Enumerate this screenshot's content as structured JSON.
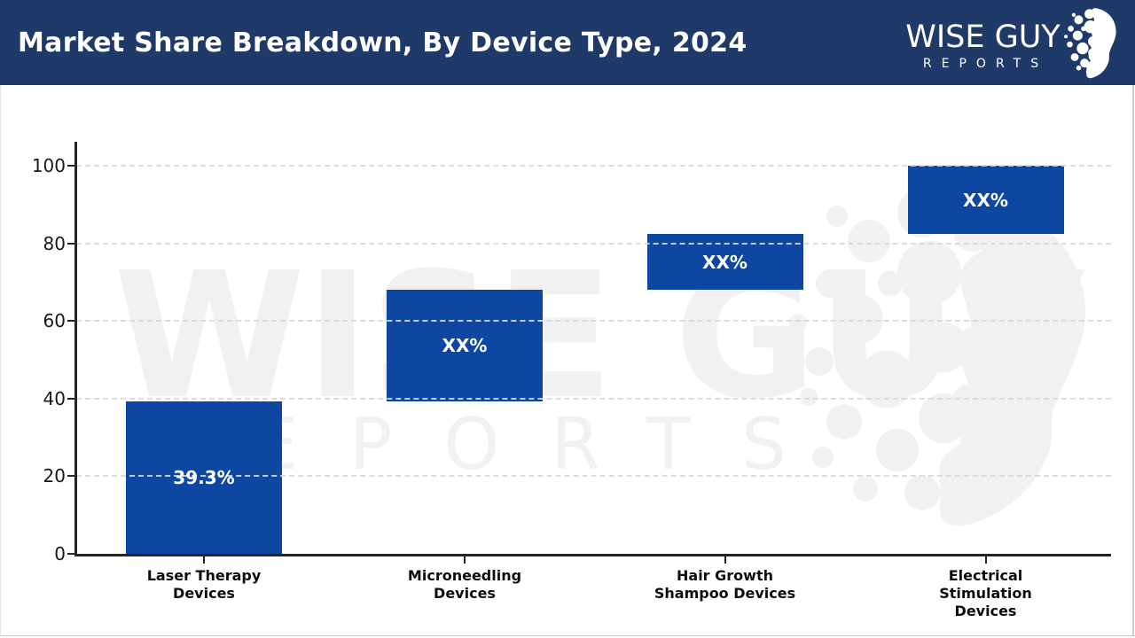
{
  "header": {
    "title": "Market Share Breakdown, By Device Type, 2024",
    "logo_line1": "WISE GUY",
    "logo_line2": "REPORTS"
  },
  "watermark": {
    "line1": "WISE GUY",
    "line2": "REPORTS"
  },
  "colors": {
    "header_bg": "#1f3968",
    "bar": "#0d47a1",
    "bar_label": "#ffffff",
    "grid": "#d9d9d9",
    "axis": "#262626",
    "watermark": "#f1f1f1"
  },
  "chart_data": {
    "type": "bar",
    "subtype": "waterfall",
    "title": "Market Share Breakdown, By Device Type, 2024",
    "categories": [
      {
        "name": "Laser Therapy Devices",
        "lines": [
          "Laser Therapy",
          "Devices"
        ]
      },
      {
        "name": "Microneedling Devices",
        "lines": [
          "Microneedling",
          "Devices"
        ]
      },
      {
        "name": "Hair Growth Shampoo Devices",
        "lines": [
          "Hair Growth",
          "Shampoo Devices"
        ]
      },
      {
        "name": "Electrical Stimulation Devices",
        "lines": [
          "Electrical",
          "Stimulation",
          "Devices"
        ]
      }
    ],
    "series": [
      {
        "name": "Market Share",
        "segments": [
          {
            "base": 0,
            "top": 39.3,
            "label": "39.3%"
          },
          {
            "base": 39.3,
            "top": 68,
            "label": "XX%"
          },
          {
            "base": 68,
            "top": 82.4,
            "label": "XX%"
          },
          {
            "base": 82.4,
            "top": 100,
            "label": "XX%"
          }
        ]
      }
    ],
    "ylim": [
      0,
      100
    ],
    "yticks": [
      0,
      20,
      40,
      60,
      80,
      100
    ],
    "ytick_labels": [
      "0",
      "20",
      "40",
      "60",
      "80",
      "100"
    ],
    "xlabel": "",
    "ylabel": "",
    "grid": "horizontal-dashed",
    "legend": "none"
  }
}
